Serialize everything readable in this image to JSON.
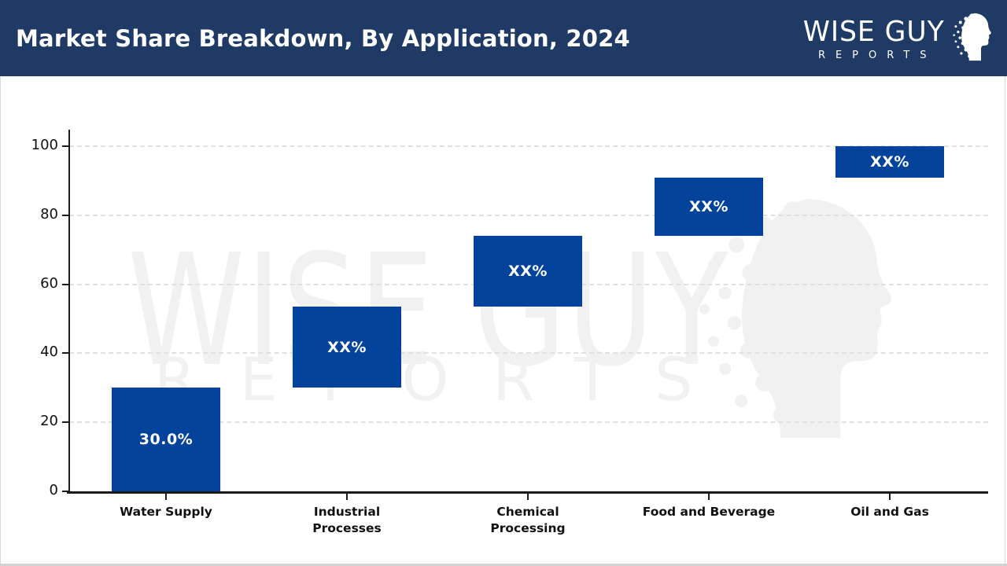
{
  "header": {
    "title": "Market Share Breakdown, By Application, 2024",
    "brand": {
      "name": "WISE GUY",
      "tagline": "REPORTS"
    }
  },
  "watermark": {
    "name": "WISE GUY",
    "tagline": "REPORTS"
  },
  "colors": {
    "header_bg": "#203A66",
    "bar": "#04439B",
    "watermark": "#F1F1F1",
    "axis": "#1A1A1A",
    "gridline": "#E0E0E0"
  },
  "chart_data": {
    "type": "bar",
    "subtype": "waterfall",
    "title": "Market Share Breakdown, By Application, 2024",
    "categories": [
      "Water Supply",
      "Industrial\nProcesses",
      "Chemical\nProcessing",
      "Food and Beverage",
      "Oil and Gas"
    ],
    "segments": [
      {
        "start": 0,
        "end": 30,
        "label": "30.0%"
      },
      {
        "start": 30,
        "end": 53.5,
        "label": "XX%"
      },
      {
        "start": 53.5,
        "end": 74,
        "label": "XX%"
      },
      {
        "start": 74,
        "end": 91,
        "label": "XX%"
      },
      {
        "start": 91,
        "end": 100,
        "label": "XX%"
      }
    ],
    "ylim": [
      0,
      100
    ],
    "yticks": [
      0,
      20,
      40,
      60,
      80,
      100
    ],
    "grid": "dashed-horizontal",
    "legend": "none",
    "bar_color": "#04439B",
    "bar_label_color": "#FFFFFF",
    "xlabel": "",
    "ylabel": ""
  }
}
